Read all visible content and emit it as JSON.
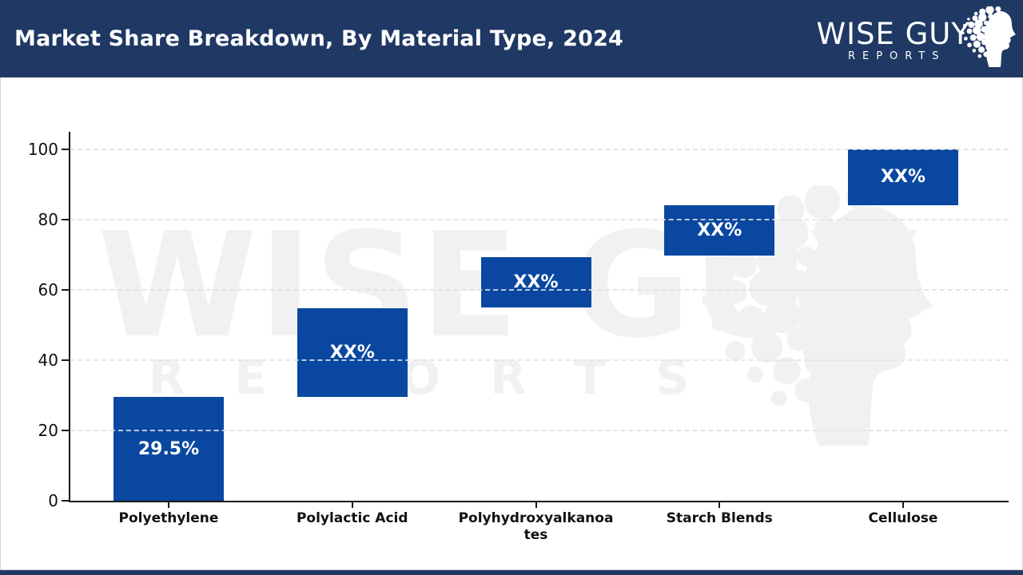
{
  "header": {
    "title": "Market Share Breakdown, By Material Type, 2024",
    "bg_color": "#1f3864",
    "logo": {
      "line1": "WISE GUY",
      "line2": "REPORTS"
    }
  },
  "watermark": {
    "line1": "WISE GUY",
    "line2": "REPORTS"
  },
  "chart_data": {
    "type": "bar",
    "subtype": "waterfall",
    "title": "Market Share Breakdown, By Material Type, 2024",
    "categories": [
      "Polyethylene",
      "Polylactic Acid",
      "Polyhydroxyalkanoates",
      "Starch Blends",
      "Cellulose"
    ],
    "segments": [
      {
        "category": "Polyethylene",
        "base": 0,
        "top": 29.5,
        "label": "29.5%"
      },
      {
        "category": "Polylactic Acid",
        "base": 29.5,
        "top": 54.8,
        "label": "XX%"
      },
      {
        "category": "Polyhydroxyalkanoates",
        "base": 55.0,
        "top": 69.4,
        "label": "XX%"
      },
      {
        "category": "Starch Blends",
        "base": 69.7,
        "top": 84.0,
        "label": "XX%"
      },
      {
        "category": "Cellulose",
        "base": 84.2,
        "top": 100,
        "label": "XX%"
      }
    ],
    "x_label_lines": [
      [
        "Polyethylene"
      ],
      [
        "Polylactic Acid"
      ],
      [
        "Polyhydroxyalkanoa",
        "tes"
      ],
      [
        "Starch Blends"
      ],
      [
        "Cellulose"
      ]
    ],
    "y_ticks": [
      0,
      20,
      40,
      60,
      80,
      100
    ],
    "ylim": [
      0,
      105
    ],
    "xlabel": "",
    "ylabel": "",
    "grid": "horizontal-dashed",
    "legend_position": "none",
    "bar_color": "#0a47a1",
    "bar_label_color": "#ffffff",
    "grid_color": "#e0e0e0"
  }
}
